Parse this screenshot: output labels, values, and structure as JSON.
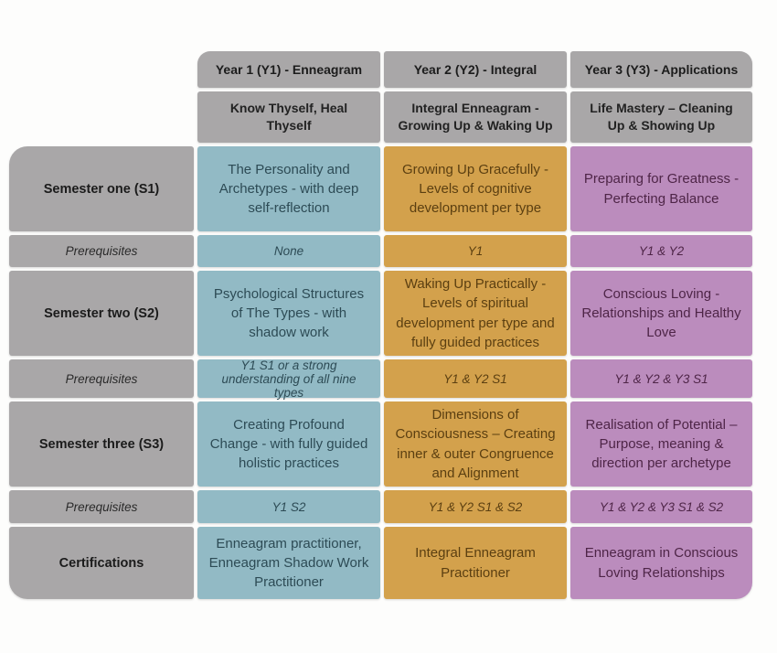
{
  "colors": {
    "gray": "#a9a7a8",
    "teal": "#92bac5",
    "gold": "#d3a14c",
    "purple": "#bb8cbd"
  },
  "row_labels": {
    "semester_one": "Semester one (S1)",
    "semester_two": "Semester two (S2)",
    "semester_three": "Semester three (S3)",
    "prerequisites": "Prerequisites",
    "certifications": "Certifications"
  },
  "columns": [
    {
      "year_label": "Year 1 (Y1) - Enneagram",
      "subtitle": "Know Thyself, Heal Thyself",
      "s1_course": "The Personality and Archetypes - with deep self-reflection",
      "s1_prereq": "None",
      "s2_course": "Psychological Structures of The Types - with shadow work",
      "s2_prereq": "Y1 S1 or a strong understanding of all nine types",
      "s3_course": "Creating Profound Change - with fully guided holistic practices",
      "s3_prereq": "Y1 S2",
      "certification": "Enneagram practitioner, Enneagram Shadow Work Practitioner"
    },
    {
      "year_label": "Year 2 (Y2) - Integral",
      "subtitle": "Integral Enneagram - Growing Up & Waking Up",
      "s1_course": "Growing Up Gracefully - Levels of cognitive development per type",
      "s1_prereq": "Y1",
      "s2_course": "Waking Up Practically - Levels of spiritual development per type and fully guided practices",
      "s2_prereq": "Y1 & Y2 S1",
      "s3_course": "Dimensions of Consciousness – Creating inner & outer Congruence and Alignment",
      "s3_prereq": "Y1 & Y2 S1 & S2",
      "certification": "Integral Enneagram Practitioner"
    },
    {
      "year_label": "Year 3 (Y3) - Applications",
      "subtitle": "Life Mastery – Cleaning Up & Showing Up",
      "s1_course": "Preparing for Greatness - Perfecting Balance",
      "s1_prereq": "Y1 & Y2",
      "s2_course": "Conscious Loving - Relationships and Healthy Love",
      "s2_prereq": "Y1 & Y2 & Y3 S1",
      "s3_course": "Realisation of Potential – Purpose, meaning & direction per archetype",
      "s3_prereq": "Y1 & Y2 & Y3 S1 & S2",
      "certification": "Enneagram in Conscious Loving Relationships"
    }
  ]
}
